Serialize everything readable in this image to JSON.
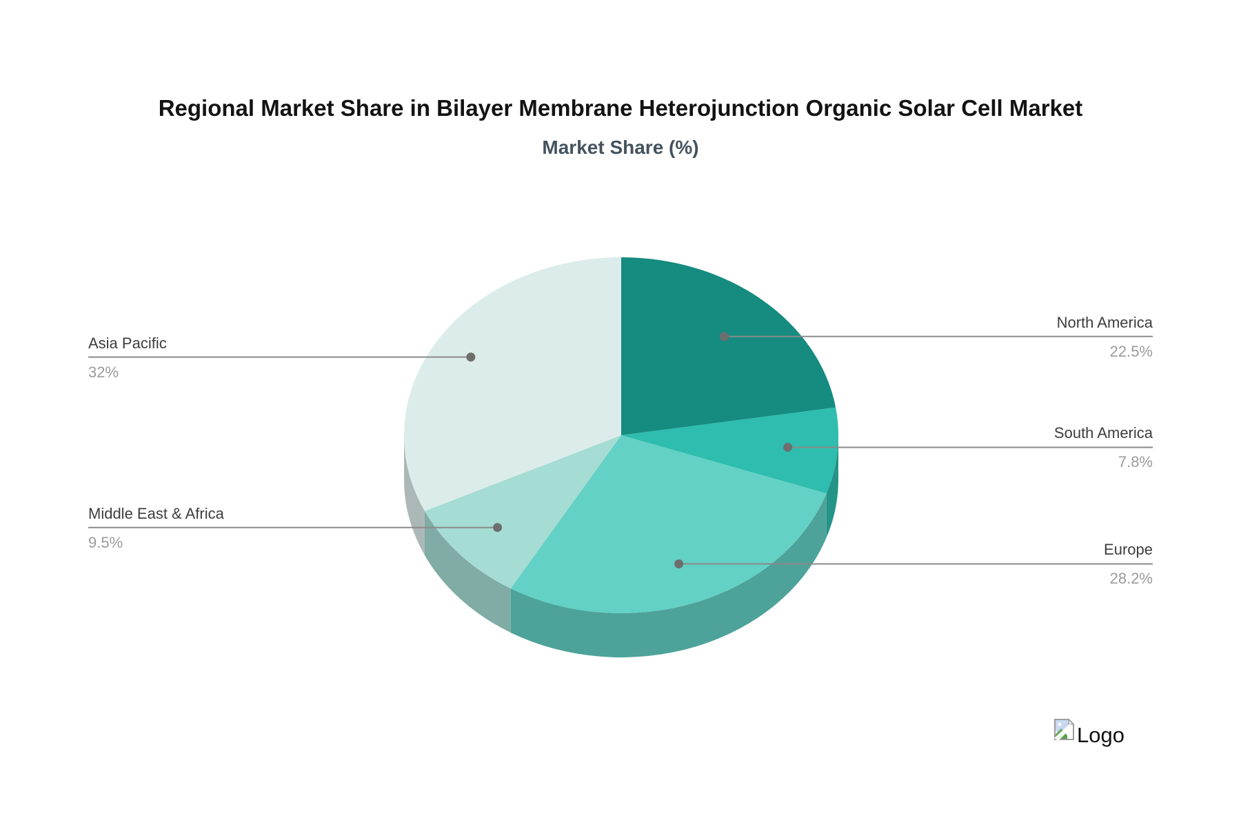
{
  "chart": {
    "title": "Regional Market Share in Bilayer Membrane Heterojunction Organic Solar Cell Market",
    "subtitle": "Market Share (%)"
  },
  "chart_data": {
    "type": "pie",
    "effect": "3d",
    "title": "Regional Market Share in Bilayer Membrane Heterojunction Organic Solar Cell Market",
    "subtitle": "Market Share (%)",
    "unit": "%",
    "direction": "clockwise",
    "start_angle": "12-o-clock",
    "legend_position": "none",
    "slices": [
      {
        "label": "North America",
        "value": 22.5,
        "display": "22.5%",
        "color": "#168b80",
        "label_side": "right"
      },
      {
        "label": "South America",
        "value": 7.8,
        "display": "7.8%",
        "color": "#2ebdae",
        "label_side": "right"
      },
      {
        "label": "Europe",
        "value": 28.2,
        "display": "28.2%",
        "color": "#63d1c5",
        "label_side": "right"
      },
      {
        "label": "Middle East & Africa",
        "value": 9.5,
        "display": "9.5%",
        "color": "#a5dcd3",
        "label_side": "left"
      },
      {
        "label": "Asia Pacific",
        "value": 32,
        "display": "32%",
        "color": "#dcecea",
        "label_side": "left"
      }
    ],
    "label_text_color": "#3d3d3d",
    "label_value_color": "#9b9b9b",
    "leader_line_color": "#8a8a8a"
  },
  "footer": {
    "logo_alt": "Logo"
  }
}
